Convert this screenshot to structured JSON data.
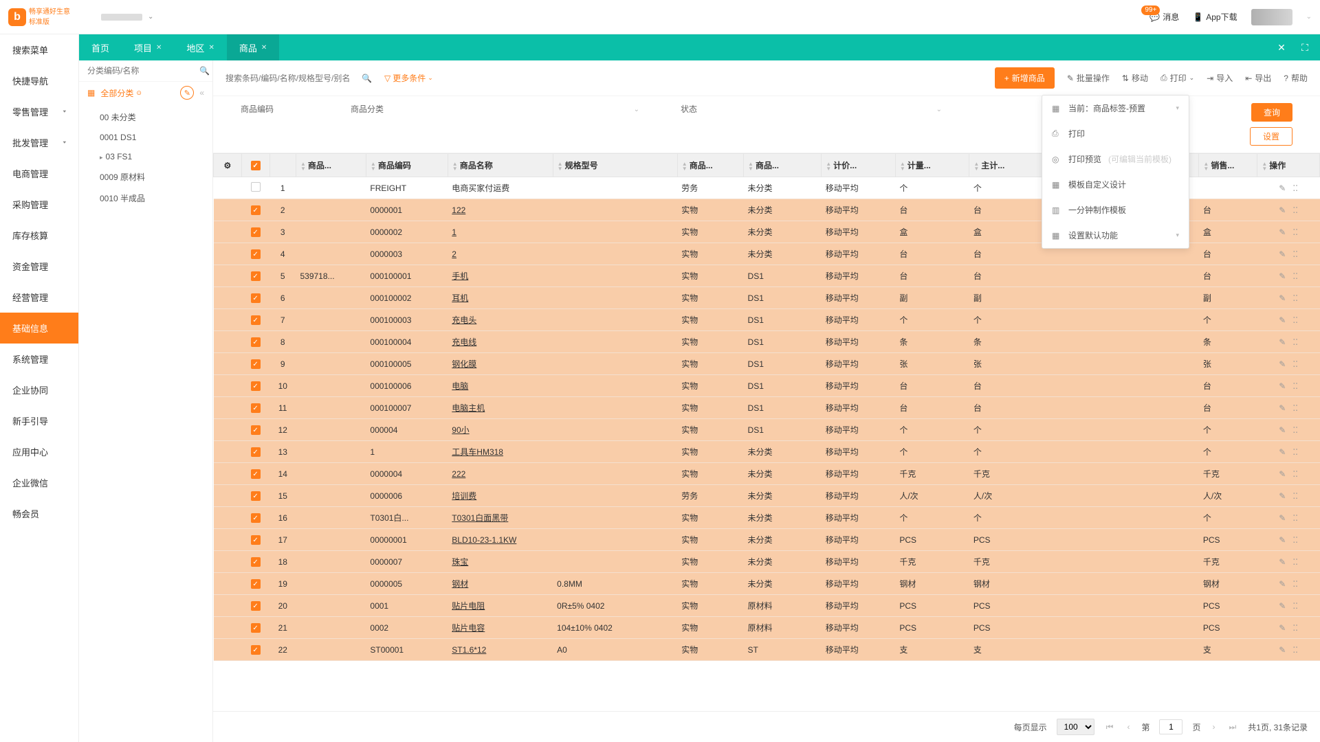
{
  "logo": {
    "brand": "畅享通好生意",
    "edition": "标准版"
  },
  "topbar": {
    "notif_label": "消息",
    "notif_badge": "99+",
    "download_label": "App下载"
  },
  "leftnav": [
    {
      "label": "搜索菜单",
      "active": false,
      "expand": false
    },
    {
      "label": "快捷导航",
      "active": false,
      "expand": false
    },
    {
      "label": "零售管理",
      "active": false,
      "expand": true
    },
    {
      "label": "批发管理",
      "active": false,
      "expand": true
    },
    {
      "label": "电商管理",
      "active": false,
      "expand": false
    },
    {
      "label": "采购管理",
      "active": false,
      "expand": false
    },
    {
      "label": "库存核算",
      "active": false,
      "expand": false
    },
    {
      "label": "资金管理",
      "active": false,
      "expand": false
    },
    {
      "label": "经营管理",
      "active": false,
      "expand": false
    },
    {
      "label": "基础信息",
      "active": true,
      "expand": false
    },
    {
      "label": "系统管理",
      "active": false,
      "expand": false
    },
    {
      "label": "企业协同",
      "active": false,
      "expand": false
    },
    {
      "label": "新手引导",
      "active": false,
      "expand": false
    },
    {
      "label": "应用中心",
      "active": false,
      "expand": false
    },
    {
      "label": "企业微信",
      "active": false,
      "expand": false
    },
    {
      "label": "畅会员",
      "active": false,
      "expand": false
    }
  ],
  "tabs": [
    {
      "label": "首页",
      "closable": false,
      "active": false
    },
    {
      "label": "项目",
      "closable": true,
      "active": false
    },
    {
      "label": "地区",
      "closable": true,
      "active": false
    },
    {
      "label": "商品",
      "closable": true,
      "active": true
    }
  ],
  "side": {
    "search_placeholder": "分类编码/名称",
    "all_label": "全部分类",
    "tree": [
      {
        "label": "00 未分类",
        "expandable": false
      },
      {
        "label": "0001 DS1",
        "expandable": false
      },
      {
        "label": "03 FS1",
        "expandable": true
      },
      {
        "label": "0009 原材料",
        "expandable": false
      },
      {
        "label": "0010 半成品",
        "expandable": false
      }
    ]
  },
  "toolbar": {
    "search_placeholder": "搜索条码/编码/名称/规格型号/别名",
    "more_filters": "更多条件",
    "add_btn": "新增商品",
    "batch": "批量操作",
    "move": "移动",
    "print": "打印",
    "import": "导入",
    "export": "导出",
    "help": "帮助"
  },
  "filters": {
    "code_label": "商品编码",
    "cat_label": "商品分类",
    "status_label": "状态",
    "query_btn": "查询",
    "set_btn": "设置"
  },
  "dropdown": {
    "current_label": "当前：商品标签-预置",
    "items": [
      {
        "icon": "⎙",
        "label": "打印",
        "hint": "",
        "chev": false
      },
      {
        "icon": "◎",
        "label": "打印预览",
        "hint": "(可编辑当前模板)",
        "chev": false
      },
      {
        "icon": "▦",
        "label": "模板自定义设计",
        "hint": "",
        "chev": false
      },
      {
        "icon": "▥",
        "label": "一分钟制作模板",
        "hint": "",
        "chev": false
      },
      {
        "icon": "▦",
        "label": "设置默认功能",
        "hint": "",
        "chev": true
      }
    ]
  },
  "columns": [
    "商品...",
    "商品编码",
    "商品名称",
    "规格型号",
    "商品...",
    "商品...",
    "计价...",
    "计量...",
    "主计...",
    "销售...",
    "操作"
  ],
  "rows": [
    {
      "n": 1,
      "sel": false,
      "code": "",
      "pcode": "FREIGHT",
      "name": "电商买家付运费",
      "spec": "",
      "attr": "劳务",
      "cat": "未分类",
      "cost": "移动平均",
      "unit": "个",
      "main": "个",
      "sale": ""
    },
    {
      "n": 2,
      "sel": true,
      "code": "",
      "pcode": "0000001",
      "name": "122",
      "spec": "",
      "attr": "实物",
      "cat": "未分类",
      "cost": "移动平均",
      "unit": "台",
      "main": "台",
      "sale": "台"
    },
    {
      "n": 3,
      "sel": true,
      "code": "",
      "pcode": "0000002",
      "name": "1",
      "spec": "",
      "attr": "实物",
      "cat": "未分类",
      "cost": "移动平均",
      "unit": "盒",
      "main": "盒",
      "sale": "盒"
    },
    {
      "n": 4,
      "sel": true,
      "code": "",
      "pcode": "0000003",
      "name": "2",
      "spec": "",
      "attr": "实物",
      "cat": "未分类",
      "cost": "移动平均",
      "unit": "台",
      "main": "台",
      "sale": "台"
    },
    {
      "n": 5,
      "sel": true,
      "code": "539718...",
      "pcode": "000100001",
      "name": "手机",
      "spec": "",
      "attr": "实物",
      "cat": "DS1",
      "cost": "移动平均",
      "unit": "台",
      "main": "台",
      "sale": "台"
    },
    {
      "n": 6,
      "sel": true,
      "code": "",
      "pcode": "000100002",
      "name": "耳机",
      "spec": "",
      "attr": "实物",
      "cat": "DS1",
      "cost": "移动平均",
      "unit": "副",
      "main": "副",
      "sale": "副"
    },
    {
      "n": 7,
      "sel": true,
      "code": "",
      "pcode": "000100003",
      "name": "充电头",
      "spec": "",
      "attr": "实物",
      "cat": "DS1",
      "cost": "移动平均",
      "unit": "个",
      "main": "个",
      "sale": "个"
    },
    {
      "n": 8,
      "sel": true,
      "code": "",
      "pcode": "000100004",
      "name": "充电线",
      "spec": "",
      "attr": "实物",
      "cat": "DS1",
      "cost": "移动平均",
      "unit": "条",
      "main": "条",
      "sale": "条"
    },
    {
      "n": 9,
      "sel": true,
      "code": "",
      "pcode": "000100005",
      "name": "钢化膜",
      "spec": "",
      "attr": "实物",
      "cat": "DS1",
      "cost": "移动平均",
      "unit": "张",
      "main": "张",
      "sale": "张"
    },
    {
      "n": 10,
      "sel": true,
      "code": "",
      "pcode": "000100006",
      "name": "电脑",
      "spec": "",
      "attr": "实物",
      "cat": "DS1",
      "cost": "移动平均",
      "unit": "台",
      "main": "台",
      "sale": "台"
    },
    {
      "n": 11,
      "sel": true,
      "code": "",
      "pcode": "000100007",
      "name": "电脑主机",
      "spec": "",
      "attr": "实物",
      "cat": "DS1",
      "cost": "移动平均",
      "unit": "台",
      "main": "台",
      "sale": "台"
    },
    {
      "n": 12,
      "sel": true,
      "code": "",
      "pcode": "000004",
      "name": "90小",
      "spec": "",
      "attr": "实物",
      "cat": "DS1",
      "cost": "移动平均",
      "unit": "个",
      "main": "个",
      "sale": "个"
    },
    {
      "n": 13,
      "sel": true,
      "code": "",
      "pcode": "1",
      "name": "工具车HM318",
      "spec": "",
      "attr": "实物",
      "cat": "未分类",
      "cost": "移动平均",
      "unit": "个",
      "main": "个",
      "sale": "个"
    },
    {
      "n": 14,
      "sel": true,
      "code": "",
      "pcode": "0000004",
      "name": "222",
      "spec": "",
      "attr": "实物",
      "cat": "未分类",
      "cost": "移动平均",
      "unit": "千克",
      "main": "千克",
      "sale": "千克"
    },
    {
      "n": 15,
      "sel": true,
      "code": "",
      "pcode": "0000006",
      "name": "培训费",
      "spec": "",
      "attr": "劳务",
      "cat": "未分类",
      "cost": "移动平均",
      "unit": "人/次",
      "main": "人/次",
      "sale": "人/次"
    },
    {
      "n": 16,
      "sel": true,
      "code": "",
      "pcode": "T0301白...",
      "name": "T0301白面黑带",
      "spec": "",
      "attr": "实物",
      "cat": "未分类",
      "cost": "移动平均",
      "unit": "个",
      "main": "个",
      "sale": "个"
    },
    {
      "n": 17,
      "sel": true,
      "code": "",
      "pcode": "00000001",
      "name": "BLD10-23-1.1KW",
      "spec": "",
      "attr": "实物",
      "cat": "未分类",
      "cost": "移动平均",
      "unit": "PCS",
      "main": "PCS",
      "sale": "PCS"
    },
    {
      "n": 18,
      "sel": true,
      "code": "",
      "pcode": "0000007",
      "name": "珠宝",
      "spec": "",
      "attr": "实物",
      "cat": "未分类",
      "cost": "移动平均",
      "unit": "千克",
      "main": "千克",
      "sale": "千克"
    },
    {
      "n": 19,
      "sel": true,
      "code": "",
      "pcode": "0000005",
      "name": "钢材",
      "spec": "0.8MM",
      "attr": "实物",
      "cat": "未分类",
      "cost": "移动平均",
      "unit": "钢材",
      "main": "钢材",
      "sale": "钢材"
    },
    {
      "n": 20,
      "sel": true,
      "code": "",
      "pcode": "0001",
      "name": "贴片电阻",
      "spec": "0R±5% 0402",
      "attr": "实物",
      "cat": "原材料",
      "cost": "移动平均",
      "unit": "PCS",
      "main": "PCS",
      "sale": "PCS"
    },
    {
      "n": 21,
      "sel": true,
      "code": "",
      "pcode": "0002",
      "name": "贴片电容",
      "spec": "104±10% 0402",
      "attr": "实物",
      "cat": "原材料",
      "cost": "移动平均",
      "unit": "PCS",
      "main": "PCS",
      "sale": "PCS"
    },
    {
      "n": 22,
      "sel": true,
      "code": "",
      "pcode": "ST00001",
      "name": "ST1.6*12",
      "spec": "A0",
      "attr": "实物",
      "cat": "ST",
      "cost": "移动平均",
      "unit": "支",
      "main": "支",
      "sale": "支"
    }
  ],
  "pager": {
    "per_label": "每页显示",
    "per_value": "100",
    "page_label_l": "第",
    "page_value": "1",
    "page_label_r": "页",
    "total": "共1页, 31条记录"
  },
  "colors": {
    "primary": "#ff7d1a",
    "teal": "#0bbfa8",
    "sel_row": "#f9cda9"
  }
}
